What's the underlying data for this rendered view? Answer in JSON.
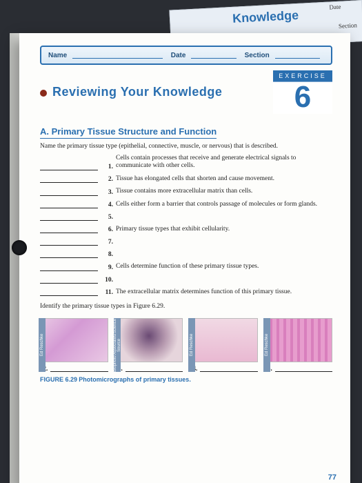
{
  "bg": {
    "brand": "Knowledge",
    "date_label": "Date",
    "section_label": "Section"
  },
  "header": {
    "name_label": "Name",
    "date_label": "Date",
    "section_label": "Section"
  },
  "title": "Reviewing Your Knowledge",
  "exercise": {
    "label": "EXERCISE",
    "number": "6"
  },
  "sectionA": {
    "heading": "A. Primary Tissue Structure and Function",
    "instruction": "Name the primary tissue type (epithelial, connective, muscle, or nervous) that is described.",
    "items": [
      "Cells contain processes that receive and generate electrical signals to communicate with other cells.",
      "Tissue has elongated cells that shorten and cause movement.",
      "Tissue contains more extracellular matrix than cells.",
      "Cells either form a barrier that controls passage of molecules or form glands.",
      "",
      "Primary tissue types that exhibit cellularity.",
      "",
      "",
      "Cells determine function of these primary tissue types.",
      "",
      "The extracellular matrix determines function of this primary tissue."
    ],
    "identify_instruction": "Identify the primary tissue types in Figure 6.29."
  },
  "figure": {
    "label": "FIGURE 6.29",
    "caption": "Photomicrographs of primary tissues.",
    "credits": [
      "Ed Reschke",
      "Biophoto Associates/Science Source",
      "Ed Reschke",
      "Ed Reschke"
    ],
    "nums": [
      "12.",
      "13.",
      "14.",
      "15."
    ],
    "tile_styles": [
      "background: linear-gradient(135deg,#e9c8e4,#d49ad4 40%,#e9c8e4);",
      "background: radial-gradient(circle at 50% 40%, #6a4a74 0%, #b79ab0 40%, #e6d5dc 70%);",
      "background: linear-gradient(#f1d9e4,#e9b9d2);",
      "background: repeating-linear-gradient(90deg,#e79dcd,#e79dcd 6px,#d97fbd 6px,#d97fbd 10px);"
    ]
  },
  "page_number": "77",
  "colors": {
    "brand_blue": "#2a6fb0",
    "bullet": "#8a2a1a"
  }
}
